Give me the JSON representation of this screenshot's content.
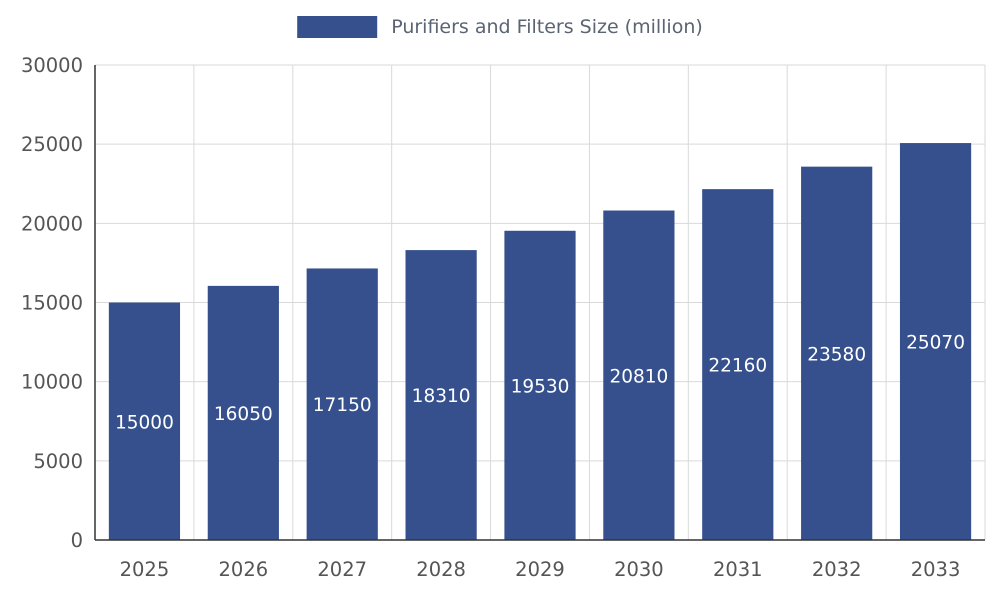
{
  "chart_data": {
    "type": "bar",
    "title": "Purifiers and Filters Size (million)",
    "categories": [
      "2025",
      "2026",
      "2027",
      "2028",
      "2029",
      "2030",
      "2031",
      "2032",
      "2033"
    ],
    "values": [
      15000,
      16050,
      17150,
      18310,
      19530,
      20810,
      22160,
      23580,
      25070
    ],
    "xlabel": "",
    "ylabel": "",
    "ylim": [
      0,
      30000
    ],
    "y_ticks": [
      0,
      5000,
      10000,
      15000,
      20000,
      25000,
      30000
    ],
    "grid": true,
    "legend_position": "top-center",
    "bar_color": "#35508C",
    "bar_label_color": "#ffffff",
    "axis_text_color": "#555555",
    "grid_color": "#d9d9d9",
    "axis_line_color": "#333333",
    "background_color": "#ffffff"
  }
}
